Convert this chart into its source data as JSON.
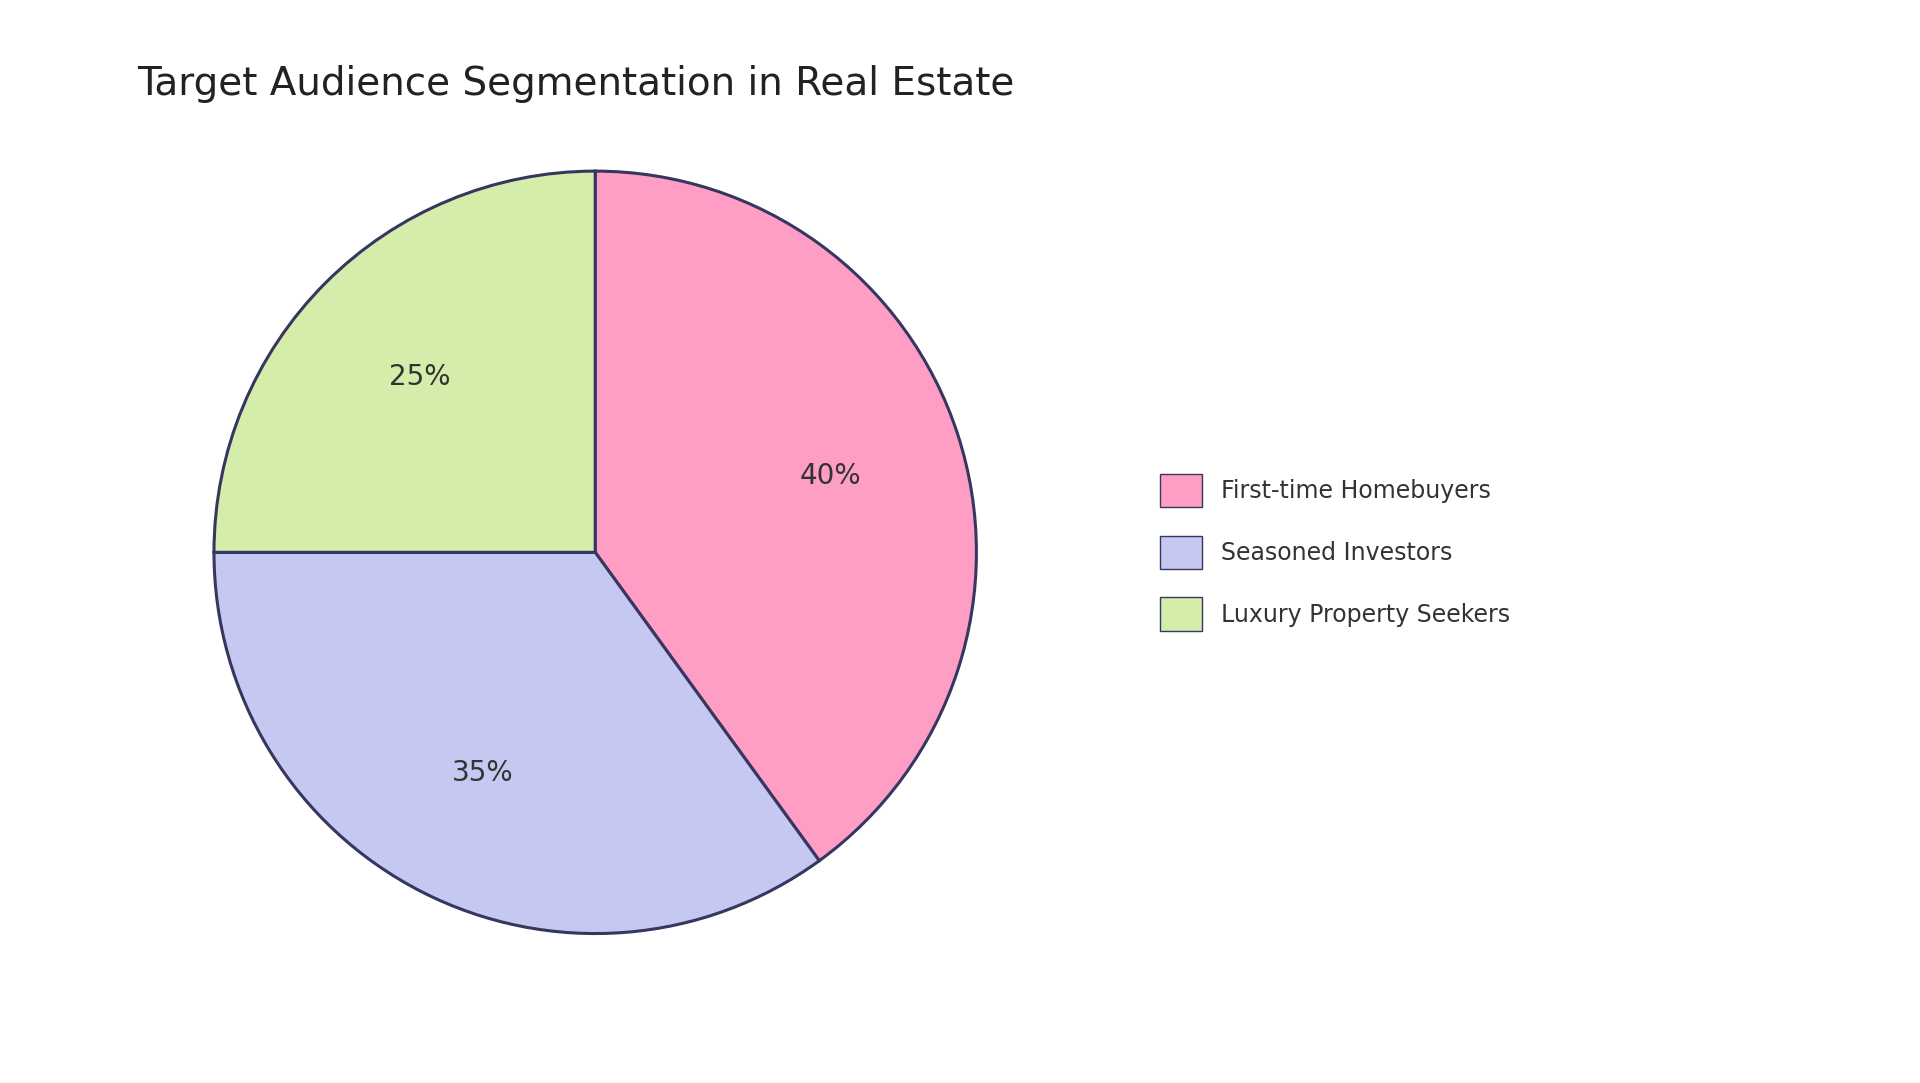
{
  "title": "Target Audience Segmentation in Real Estate",
  "slices": [
    {
      "label": "First-time Homebuyers",
      "value": 40,
      "color": "#FF9EC4",
      "text_color": "#333333"
    },
    {
      "label": "Seasoned Investors",
      "value": 35,
      "color": "#C5C8F0",
      "text_color": "#333333"
    },
    {
      "label": "Luxury Property Seekers",
      "value": 25,
      "color": "#D4EDAA",
      "text_color": "#333333"
    }
  ],
  "autopct_fontsize": 20,
  "title_fontsize": 28,
  "legend_fontsize": 17,
  "edge_color": "#363660",
  "edge_linewidth": 2.2,
  "background_color": "#FFFFFF",
  "startangle": 90,
  "pctdistance": 0.65,
  "text_color": "#333333"
}
